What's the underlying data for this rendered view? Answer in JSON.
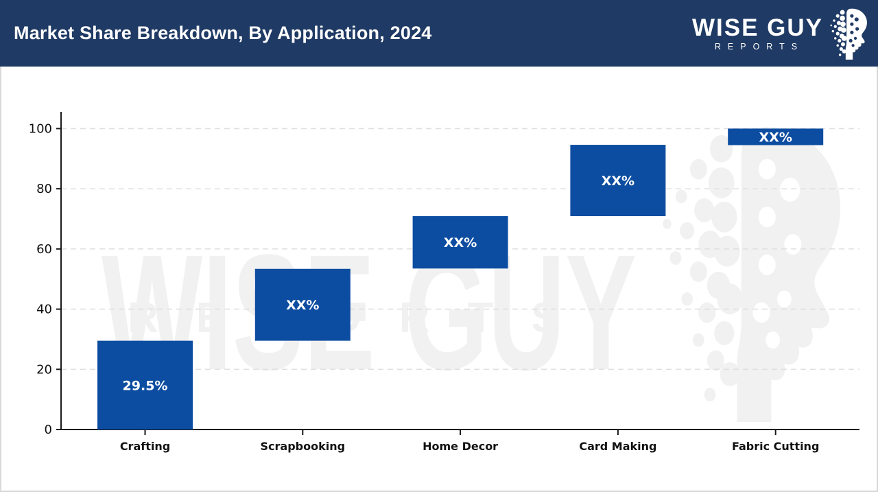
{
  "header": {
    "title": "Market Share Breakdown, By Application, 2024",
    "bg_color": "#1f3a64",
    "logo": {
      "line1": "WISE GUY",
      "line2": "REPORTS"
    }
  },
  "watermark": {
    "line1": "WISE GUY",
    "line2": "REPORTS"
  },
  "chart_data": {
    "type": "bar",
    "subtype": "floating-waterfall",
    "title": "Market Share Breakdown, By Application, 2024",
    "categories": [
      "Crafting",
      "Scrapbooking",
      "Home Decor",
      "Card Making",
      "Fabric Cutting"
    ],
    "series": [
      {
        "name": "Market share (%)",
        "segments": [
          {
            "category": "Crafting",
            "start": 0,
            "end": 29.5,
            "label": "29.5%"
          },
          {
            "category": "Scrapbooking",
            "start": 29.5,
            "end": 53.4,
            "label": "XX%"
          },
          {
            "category": "Home Decor",
            "start": 53.5,
            "end": 70.9,
            "label": "XX%"
          },
          {
            "category": "Card Making",
            "start": 70.9,
            "end": 94.6,
            "label": "XX%"
          },
          {
            "category": "Fabric Cutting",
            "start": 94.5,
            "end": 100,
            "label": "XX%"
          }
        ]
      }
    ],
    "xlabel": "",
    "ylabel": "",
    "ylim": [
      0,
      105
    ],
    "yticks": [
      0,
      20,
      40,
      60,
      80,
      100
    ],
    "grid": "horizontal-dashed",
    "legend": "none",
    "bar_color": "#0d4da1",
    "bar_label_color": "#ffffff",
    "axis_color": "#1a1a1a",
    "gridline_color": "#e0e0e0"
  }
}
